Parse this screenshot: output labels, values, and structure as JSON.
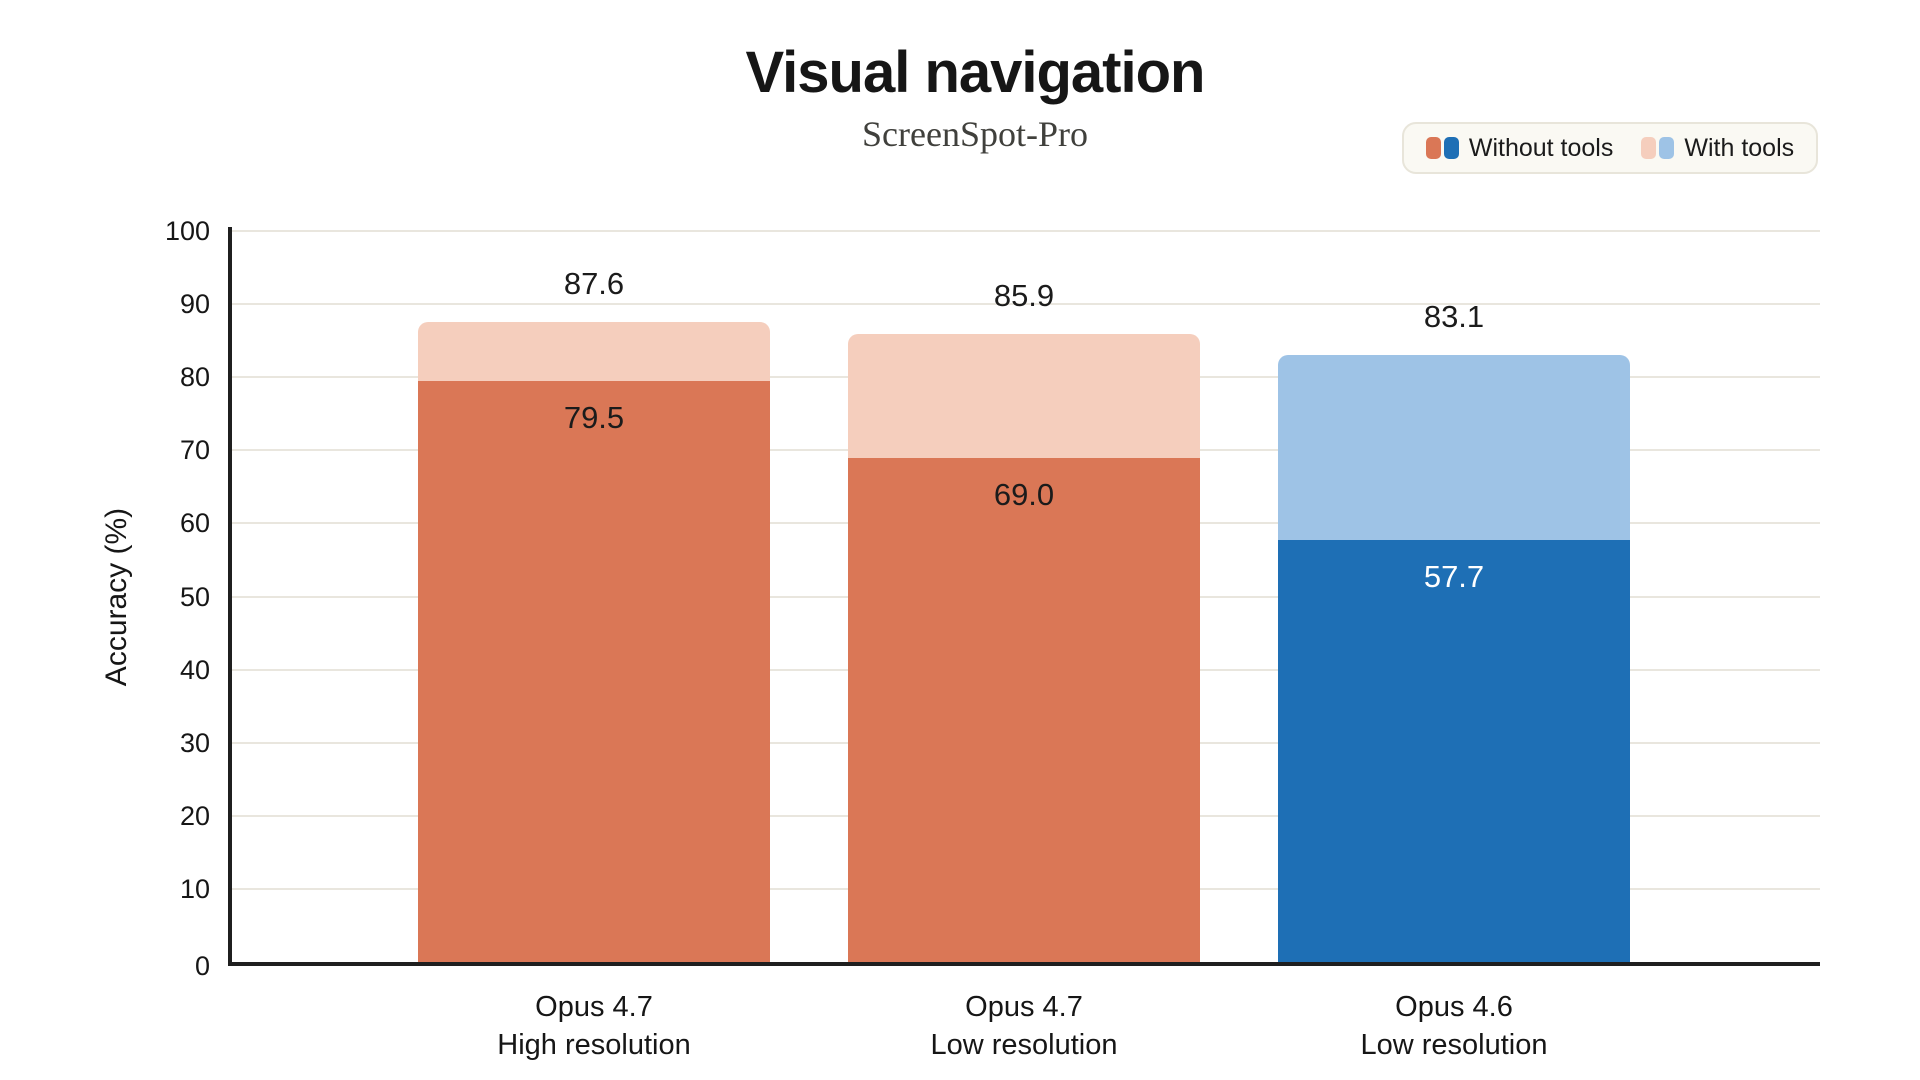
{
  "header": {
    "title": "Visual navigation",
    "subtitle": "ScreenSpot-Pro"
  },
  "legend": {
    "items": [
      {
        "label": "Without tools",
        "swatches": [
          "#da7756",
          "#1e6fb5"
        ]
      },
      {
        "label": "With tools",
        "swatches": [
          "#f5cebd",
          "#9ec3e6"
        ]
      }
    ]
  },
  "chart_data": {
    "type": "bar",
    "title": "Visual navigation",
    "subtitle": "ScreenSpot-Pro",
    "ylabel": "Accuracy (%)",
    "ylim": [
      0,
      100
    ],
    "yticks": [
      0,
      10,
      20,
      30,
      40,
      50,
      60,
      70,
      80,
      90,
      100
    ],
    "grid": true,
    "legend_position": "top-right",
    "categories": [
      [
        "Opus 4.7",
        "High resolution"
      ],
      [
        "Opus 4.7",
        "Low resolution"
      ],
      [
        "Opus 4.6",
        "Low resolution"
      ]
    ],
    "series": [
      {
        "name": "Without tools",
        "values": [
          79.5,
          69.0,
          57.7
        ]
      },
      {
        "name": "With tools",
        "values": [
          87.6,
          85.9,
          83.1
        ]
      }
    ],
    "groups": [
      {
        "label_lines": [
          "Opus 4.7",
          "High resolution"
        ],
        "without_tools": 79.5,
        "with_tools": 87.6,
        "color_dark": "#da7756",
        "color_light": "#f5cebd",
        "inside_label_color": "#1b1b1b",
        "above_label_color": "#1b1b1b"
      },
      {
        "label_lines": [
          "Opus 4.7",
          "Low resolution"
        ],
        "without_tools": 69.0,
        "with_tools": 85.9,
        "color_dark": "#da7756",
        "color_light": "#f5cebd",
        "inside_label_color": "#1b1b1b",
        "above_label_color": "#1b1b1b"
      },
      {
        "label_lines": [
          "Opus 4.6",
          "Low resolution"
        ],
        "without_tools": 57.7,
        "with_tools": 83.1,
        "color_dark": "#1e6fb5",
        "color_light": "#9ec3e6",
        "inside_label_color": "#ffffff",
        "above_label_color": "#1b1b1b"
      }
    ]
  },
  "colors": {
    "background": "#ffffff",
    "text": "#1b1b1b",
    "subtitle_text": "#40403c",
    "gridline": "#e9e6de",
    "axis": "#1f1f1f",
    "legend_background": "#faf9f3",
    "legend_border": "#e8e5da",
    "orange_dark": "#da7756",
    "orange_light": "#f5cebd",
    "blue_dark": "#1e6fb5",
    "blue_light": "#9ec3e6"
  }
}
